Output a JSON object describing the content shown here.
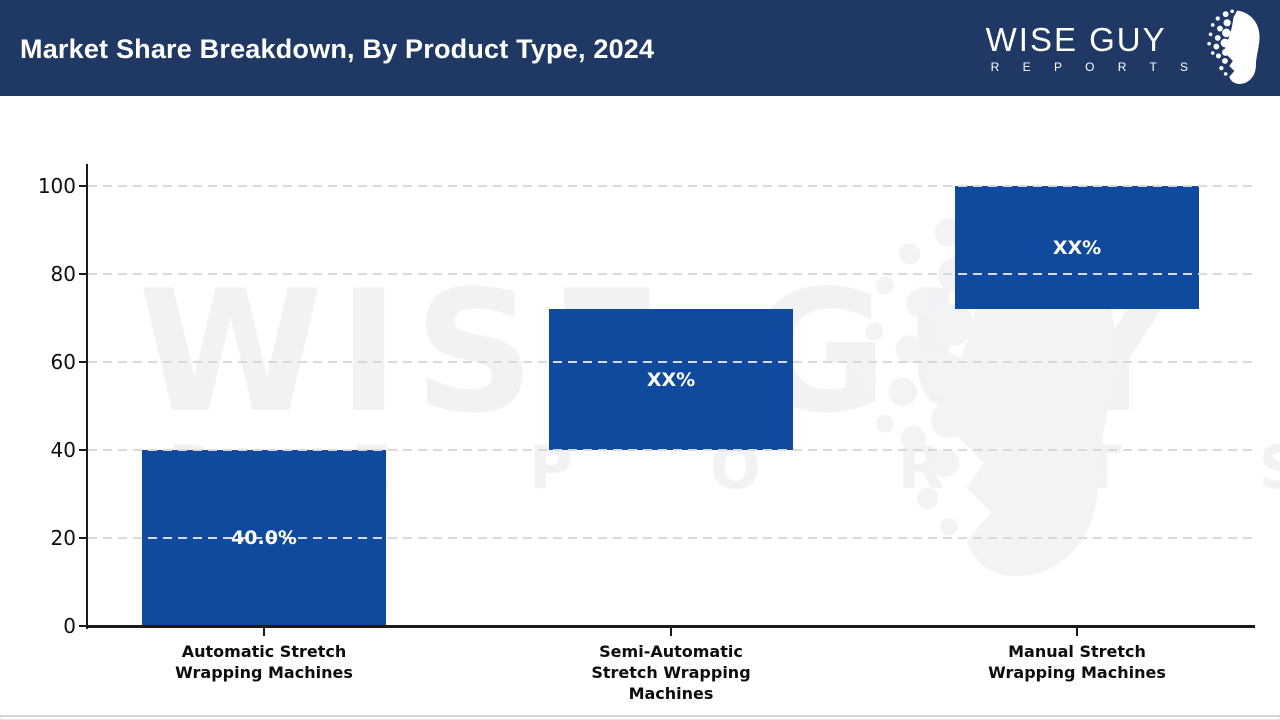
{
  "header": {
    "title": "Market Share Breakdown, By Product Type, 2024",
    "logo": {
      "line1": "WISE GUY",
      "line2": "R E P O R T S"
    }
  },
  "watermark": {
    "line1": "WISE GUY",
    "line2": "R E P O R T S"
  },
  "colors": {
    "header_bg": "#1f3864",
    "bar_blue": "#0f4a9e",
    "gridline": "#d9d9d9",
    "axis": "#1a1a1a",
    "watermark": "#f2f2f4",
    "title_text": "#ffffff",
    "bar_label_text": "#ffffff"
  },
  "chart_data": {
    "type": "bar",
    "variant": "waterfall",
    "title": "Market Share Breakdown, By Product Type, 2024",
    "xlabel": "",
    "ylabel": "",
    "ylim": [
      0,
      100
    ],
    "yticks": [
      0,
      20,
      40,
      60,
      80,
      100
    ],
    "grid": "horizontal dashed",
    "legend": "none",
    "categories": [
      "Automatic Stretch Wrapping Machines",
      "Semi-Automatic Stretch Wrapping Machines",
      "Manual Stretch Wrapping Machines"
    ],
    "categories_wrapped": [
      [
        "Automatic Stretch",
        "Wrapping Machines"
      ],
      [
        "Semi-Automatic",
        "Stretch Wrapping",
        "Machines"
      ],
      [
        "Manual Stretch",
        "Wrapping Machines"
      ]
    ],
    "segments": [
      {
        "category": "Automatic Stretch Wrapping Machines",
        "start": 0,
        "end": 40,
        "value": 40,
        "label": "40.0%"
      },
      {
        "category": "Semi-Automatic Stretch Wrapping Machines",
        "start": 40,
        "end": 72,
        "value": 32,
        "label": "XX%"
      },
      {
        "category": "Manual Stretch Wrapping Machines",
        "start": 72,
        "end": 100,
        "value": 28,
        "label": "XX%"
      }
    ]
  }
}
